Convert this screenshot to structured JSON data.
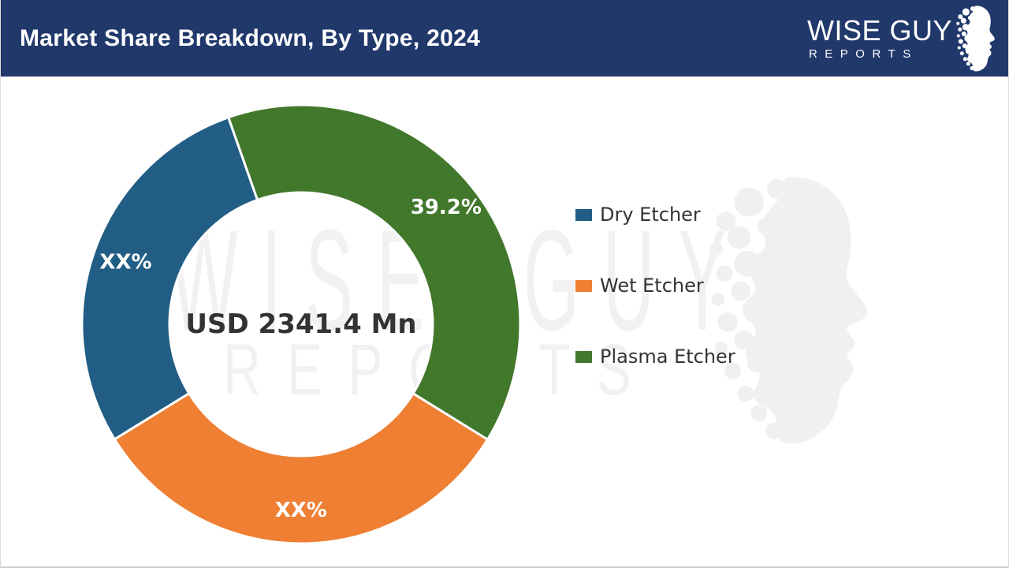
{
  "header": {
    "title": "Market Share Breakdown, By Type, 2024",
    "background_color": "#21386b",
    "logo": {
      "wordmark": "WISE GUY",
      "subtext": "REPORTS"
    }
  },
  "watermark": {
    "wordmark": "WISE GUY",
    "subtext": "REPORTS"
  },
  "chart_data": {
    "type": "pie",
    "subtype": "donut",
    "title": "Market Share Breakdown, By Type, 2024",
    "center_label": "USD 2341.4 Mn",
    "start_angle_deg": -19.4,
    "direction": "clockwise",
    "slices": [
      {
        "name": "Plasma Etcher",
        "display_label": "39.2%",
        "value_pct": 39.2,
        "color": "#42782c"
      },
      {
        "name": "Wet Etcher",
        "display_label": "XX%",
        "value_pct": 32.4,
        "color": "#ee7f33"
      },
      {
        "name": "Dry Etcher",
        "display_label": "XX%",
        "value_pct": 28.4,
        "color": "#215d84"
      }
    ],
    "legend": {
      "position": "right",
      "items": [
        {
          "label": "Dry Etcher",
          "color": "#215d84"
        },
        {
          "label": "Wet Etcher",
          "color": "#ee7f33"
        },
        {
          "label": "Plasma Etcher",
          "color": "#42782c"
        }
      ]
    }
  }
}
